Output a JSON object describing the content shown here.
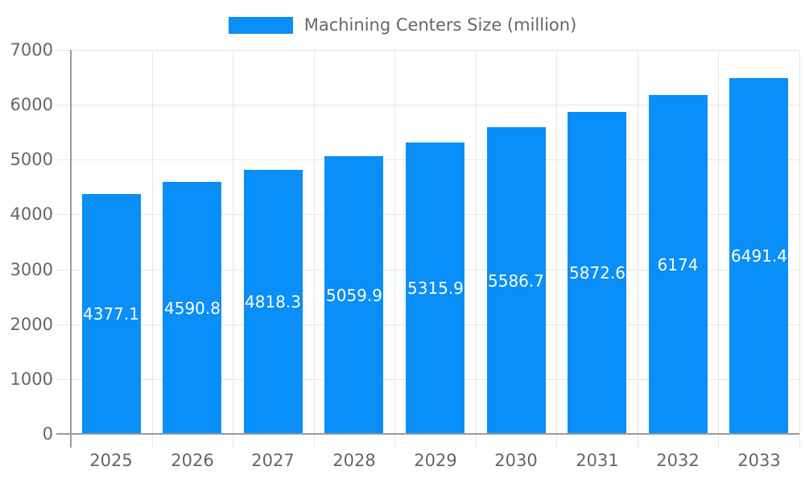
{
  "chart_data": {
    "type": "bar",
    "title": "Machining Centers Size (million)",
    "legend_position": "top",
    "categories": [
      "2025",
      "2026",
      "2027",
      "2028",
      "2029",
      "2030",
      "2031",
      "2032",
      "2033"
    ],
    "series": [
      {
        "name": "Machining Centers Size (million)",
        "values": [
          4377.1,
          4590.8,
          4818.3,
          5059.9,
          5315.9,
          5586.7,
          5872.6,
          6174,
          6491.4
        ]
      }
    ],
    "value_labels": [
      "4377.1",
      "4590.8",
      "4818.3",
      "5059.9",
      "5315.9",
      "5586.7",
      "5872.6",
      "6174",
      "6491.4"
    ],
    "xlabel": "",
    "ylabel": "",
    "ylim": [
      0,
      7000
    ],
    "ytick_step": 1000,
    "ytick_labels": [
      "0",
      "1000",
      "2000",
      "3000",
      "4000",
      "5000",
      "6000",
      "7000"
    ],
    "grid": true,
    "colors": {
      "bar": "#0A8EF8",
      "text": "#666666",
      "axis_line": "#9A9A9A",
      "gridline": "#E6E6E6",
      "value_label": "#FFFFFF",
      "background": "#FFFFFF"
    }
  }
}
